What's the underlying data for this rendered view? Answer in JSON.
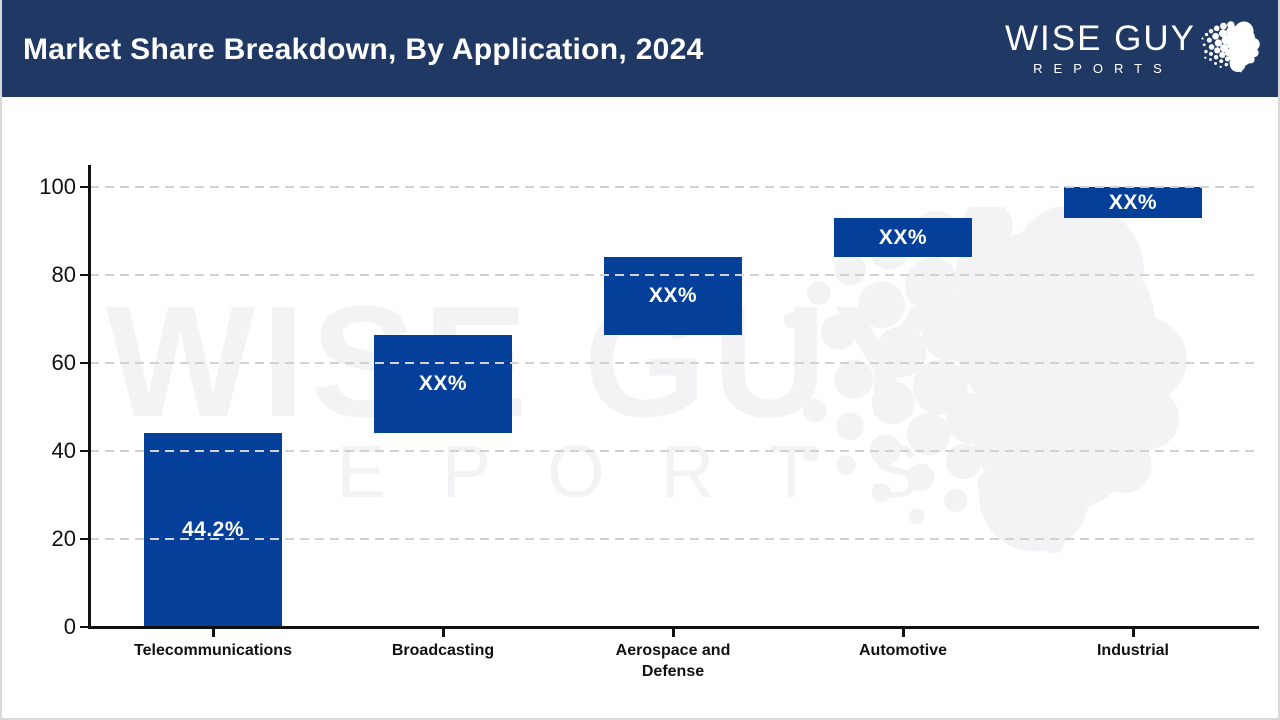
{
  "header": {
    "title": "Market Share Breakdown, By Application, 2024",
    "logo": {
      "line1": "WISE GUY",
      "line2": "REPORTS"
    }
  },
  "watermark": {
    "line1": "WISE GUY",
    "line2": "REPORTS"
  },
  "chart_data": {
    "type": "bar",
    "subtype": "waterfall",
    "title": "Market Share Breakdown, By Application, 2024",
    "categories": [
      "Telecommunications",
      "Broadcasting",
      "Aerospace and\nDefense",
      "Automotive",
      "Industrial"
    ],
    "segments": [
      {
        "category": "Telecommunications",
        "start": 0,
        "end": 44.2,
        "value": 44.2,
        "label": "44.2%"
      },
      {
        "category": "Broadcasting",
        "start": 44.2,
        "end": 66.4,
        "value": 22.2,
        "label": "XX%"
      },
      {
        "category": "Aerospace and Defense",
        "start": 66.4,
        "end": 84.2,
        "value": 17.8,
        "label": "XX%"
      },
      {
        "category": "Automotive",
        "start": 84.2,
        "end": 93,
        "value": 8.8,
        "label": "XX%"
      },
      {
        "category": "Industrial",
        "start": 93,
        "end": 100,
        "value": 7,
        "label": "XX%"
      }
    ],
    "yticks": [
      0,
      20,
      40,
      60,
      80,
      100
    ],
    "ylim": [
      0,
      105
    ],
    "grid": true,
    "grid_style": "dashed",
    "legend": "none",
    "bar_color": "#04409A",
    "bar_label_color": "#ffffff",
    "axis_color": "#111111",
    "gridline_color": "#d2d2d2",
    "header_bg_color": "#203864",
    "watermark_color": "#f3f3f5"
  }
}
